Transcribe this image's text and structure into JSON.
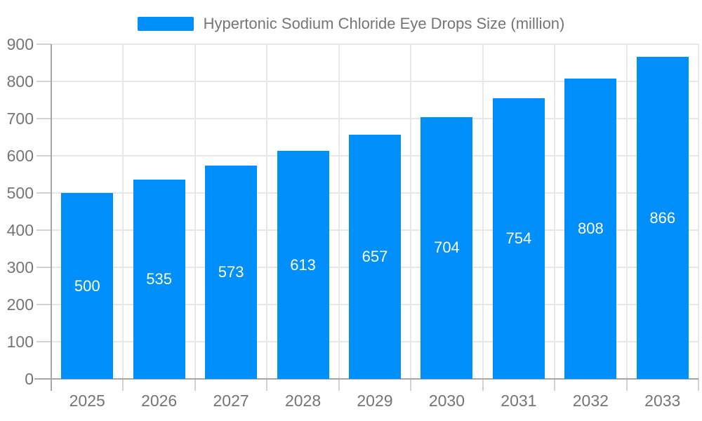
{
  "chart_data": {
    "type": "bar",
    "title": "Hypertonic Sodium Chloride Eye Drops Size (million)",
    "categories": [
      "2025",
      "2026",
      "2027",
      "2028",
      "2029",
      "2030",
      "2031",
      "2032",
      "2033"
    ],
    "series": [
      {
        "name": "Hypertonic Sodium Chloride Eye Drops Size (million)",
        "values": [
          500,
          535,
          573,
          613,
          657,
          704,
          754,
          808,
          866
        ]
      }
    ],
    "bar_labels": [
      "500",
      "535",
      "573",
      "613",
      "657",
      "704",
      "754",
      "808",
      "866"
    ],
    "xlabel": "",
    "ylabel": "",
    "ylim": [
      0,
      900
    ],
    "yticks": [
      0,
      100,
      200,
      300,
      400,
      500,
      600,
      700,
      800,
      900
    ],
    "grid": true,
    "legend_position": "top",
    "colors": {
      "bar": "#008FFB",
      "bar_label": "#FFFFFF",
      "axis_label": "#757575",
      "title": "#757575",
      "grid_line": "#E7E7E7",
      "axis_line": "#A6A6A6",
      "tick_mark": "#D2D2D2"
    }
  }
}
